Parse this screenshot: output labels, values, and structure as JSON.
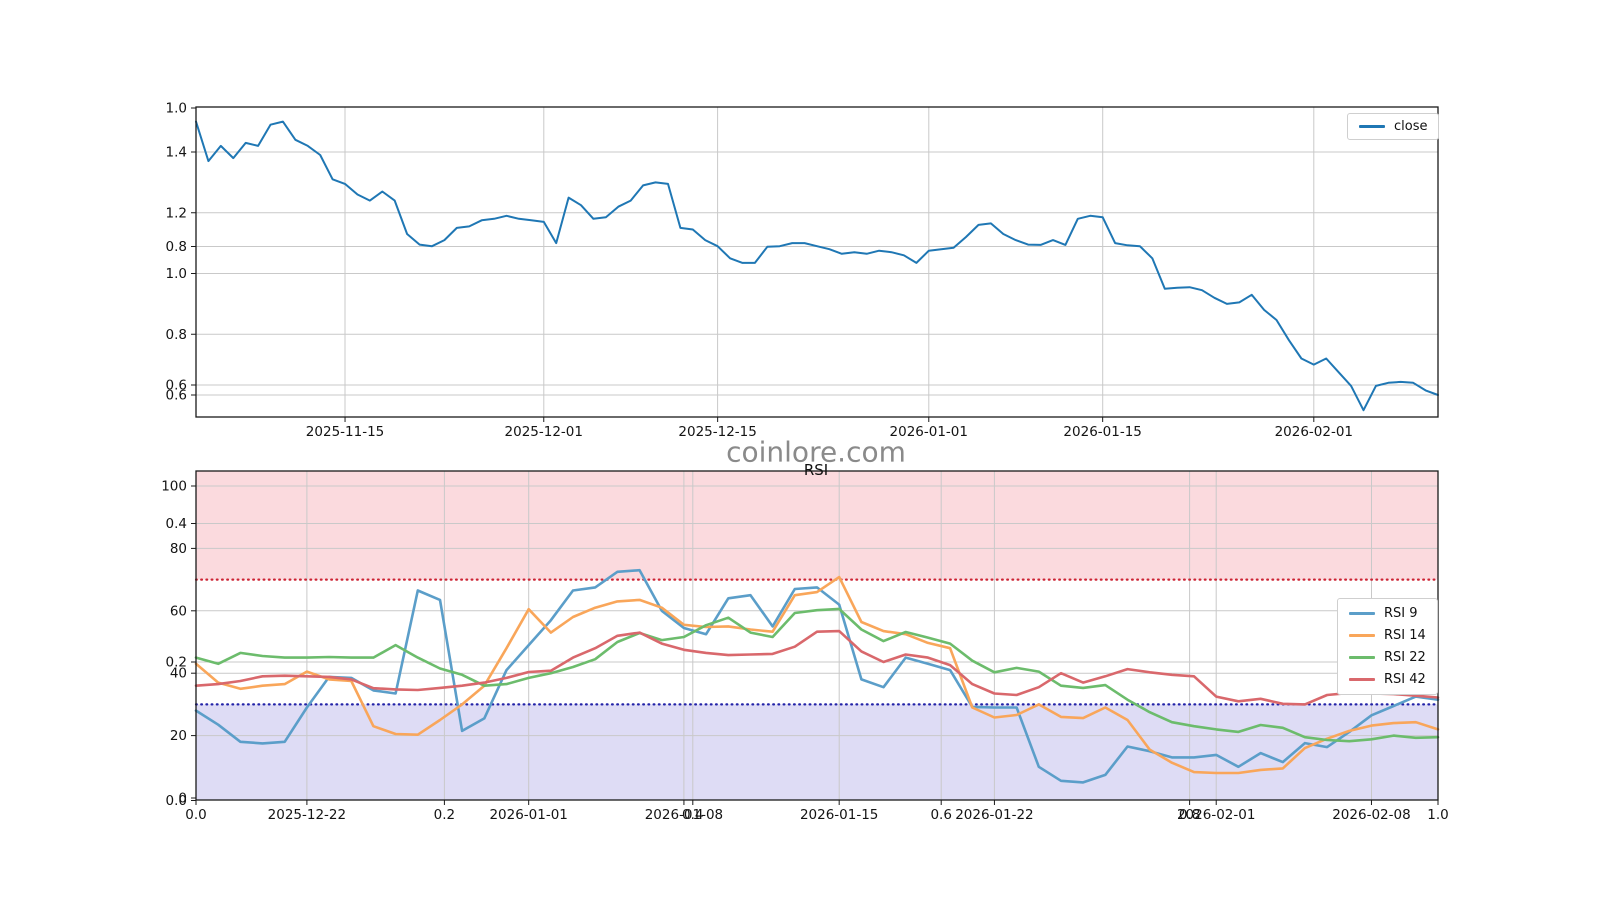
{
  "watermark": "coinlore.com",
  "fraction_axis_ticks": [
    {
      "label": "0.0",
      "value": 0.0
    },
    {
      "label": "0.2",
      "value": 0.2
    },
    {
      "label": "0.4",
      "value": 0.4
    },
    {
      "label": "0.6",
      "value": 0.6
    },
    {
      "label": "0.8",
      "value": 0.8
    },
    {
      "label": "1.0",
      "value": 1.0
    }
  ],
  "chart_data": [
    {
      "type": "line",
      "title": "",
      "legend_position": "upper right",
      "grid": true,
      "ylim": [
        0.53,
        1.52
      ],
      "x_tick_labels": [
        "2025-11-15",
        "2025-12-01",
        "2025-12-15",
        "2026-01-01",
        "2026-01-15",
        "2026-02-01"
      ],
      "y_ticks": [
        {
          "label": "1.4",
          "value": 1.4
        },
        {
          "label": "1.2",
          "value": 1.2
        },
        {
          "label": "1.0",
          "value": 1.0
        },
        {
          "label": "0.8",
          "value": 0.8
        },
        {
          "label": "0.6",
          "value": 0.6
        }
      ],
      "x": [
        "2025-11-03",
        "2025-11-04",
        "2025-11-05",
        "2025-11-06",
        "2025-11-07",
        "2025-11-08",
        "2025-11-09",
        "2025-11-10",
        "2025-11-11",
        "2025-11-12",
        "2025-11-13",
        "2025-11-14",
        "2025-11-15",
        "2025-11-16",
        "2025-11-17",
        "2025-11-18",
        "2025-11-19",
        "2025-11-20",
        "2025-11-21",
        "2025-11-22",
        "2025-11-23",
        "2025-11-24",
        "2025-11-25",
        "2025-11-26",
        "2025-11-27",
        "2025-11-28",
        "2025-11-29",
        "2025-11-30",
        "2025-12-01",
        "2025-12-02",
        "2025-12-03",
        "2025-12-04",
        "2025-12-05",
        "2025-12-06",
        "2025-12-07",
        "2025-12-08",
        "2025-12-09",
        "2025-12-10",
        "2025-12-11",
        "2025-12-12",
        "2025-12-13",
        "2025-12-14",
        "2025-12-15",
        "2025-12-16",
        "2025-12-17",
        "2025-12-18",
        "2025-12-19",
        "2025-12-20",
        "2025-12-21",
        "2025-12-22",
        "2025-12-23",
        "2025-12-24",
        "2025-12-25",
        "2025-12-26",
        "2025-12-27",
        "2025-12-28",
        "2025-12-29",
        "2025-12-30",
        "2025-12-31",
        "2026-01-01",
        "2026-01-02",
        "2026-01-03",
        "2026-01-04",
        "2026-01-05",
        "2026-01-06",
        "2026-01-07",
        "2026-01-08",
        "2026-01-09",
        "2026-01-10",
        "2026-01-11",
        "2026-01-12",
        "2026-01-13",
        "2026-01-14",
        "2026-01-15",
        "2026-01-16",
        "2026-01-17",
        "2026-01-18",
        "2026-01-19",
        "2026-01-20",
        "2026-01-21",
        "2026-01-22",
        "2026-01-23",
        "2026-01-24",
        "2026-01-25",
        "2026-01-26",
        "2026-01-27",
        "2026-01-28",
        "2026-01-29",
        "2026-01-30",
        "2026-01-31",
        "2026-02-01",
        "2026-02-02",
        "2026-02-03",
        "2026-02-04",
        "2026-02-05",
        "2026-02-06",
        "2026-02-07",
        "2026-02-08",
        "2026-02-09",
        "2026-02-10",
        "2026-02-11"
      ],
      "series": [
        {
          "name": "close",
          "color": "#1f77b4",
          "values": [
            1.5,
            1.37,
            1.42,
            1.38,
            1.43,
            1.42,
            1.49,
            1.5,
            1.44,
            1.42,
            1.39,
            1.31,
            1.295,
            1.26,
            1.24,
            1.27,
            1.24,
            1.13,
            1.095,
            1.09,
            1.11,
            1.15,
            1.155,
            1.175,
            1.18,
            1.19,
            1.18,
            1.175,
            1.17,
            1.1,
            1.25,
            1.225,
            1.18,
            1.185,
            1.22,
            1.24,
            1.29,
            1.3,
            1.295,
            1.15,
            1.145,
            1.11,
            1.09,
            1.05,
            1.035,
            1.035,
            1.088,
            1.09,
            1.1,
            1.1,
            1.09,
            1.08,
            1.065,
            1.07,
            1.065,
            1.075,
            1.07,
            1.06,
            1.035,
            1.075,
            1.08,
            1.085,
            1.12,
            1.16,
            1.165,
            1.13,
            1.11,
            1.095,
            1.094,
            1.11,
            1.094,
            1.18,
            1.19,
            1.185,
            1.1,
            1.093,
            1.09,
            1.05,
            0.95,
            0.953,
            0.955,
            0.945,
            0.92,
            0.9,
            0.905,
            0.93,
            0.88,
            0.847,
            0.78,
            0.72,
            0.7,
            0.72,
            0.675,
            0.63,
            0.55,
            0.63,
            0.64,
            0.643,
            0.64,
            0.615,
            0.6
          ]
        }
      ]
    },
    {
      "type": "line",
      "title": "RSI",
      "legend_position": "right",
      "grid": true,
      "ylim": [
        0,
        105
      ],
      "overbought_level": 70,
      "oversold_level": 30,
      "bands": [
        {
          "name": "overbought",
          "range": [
            70,
            105
          ],
          "color": "#fbdade"
        },
        {
          "name": "oversold",
          "range": [
            -2,
            30
          ],
          "color": "#dedcf5"
        }
      ],
      "threshold_lines": [
        {
          "name": "overbought-threshold",
          "value": 70,
          "color": "#cc2434",
          "style": "dotted"
        },
        {
          "name": "oversold-threshold",
          "value": 30,
          "color": "#2323a8",
          "style": "dotted"
        }
      ],
      "x_tick_labels": [
        "2025-12-22",
        "2026-01-01",
        "2026-01-08",
        "2026-01-15",
        "2026-01-22",
        "2026-02-01",
        "2026-02-08"
      ],
      "y_ticks": [
        {
          "label": "100",
          "value": 100
        },
        {
          "label": "80",
          "value": 80
        },
        {
          "label": "60",
          "value": 60
        },
        {
          "label": "40",
          "value": 40
        },
        {
          "label": "20",
          "value": 20
        },
        {
          "label": "0",
          "value": 0
        }
      ],
      "x": [
        "2025-12-17",
        "2025-12-18",
        "2025-12-19",
        "2025-12-20",
        "2025-12-21",
        "2025-12-22",
        "2025-12-23",
        "2025-12-24",
        "2025-12-25",
        "2025-12-26",
        "2025-12-27",
        "2025-12-28",
        "2025-12-29",
        "2025-12-30",
        "2025-12-31",
        "2026-01-01",
        "2026-01-02",
        "2026-01-03",
        "2026-01-04",
        "2026-01-05",
        "2026-01-06",
        "2026-01-07",
        "2026-01-08",
        "2026-01-09",
        "2026-01-10",
        "2026-01-11",
        "2026-01-12",
        "2026-01-13",
        "2026-01-14",
        "2026-01-15",
        "2026-01-16",
        "2026-01-17",
        "2026-01-18",
        "2026-01-19",
        "2026-01-20",
        "2026-01-21",
        "2026-01-22",
        "2026-01-23",
        "2026-01-24",
        "2026-01-25",
        "2026-01-26",
        "2026-01-27",
        "2026-01-28",
        "2026-01-29",
        "2026-01-30",
        "2026-01-31",
        "2026-02-01",
        "2026-02-02",
        "2026-02-03",
        "2026-02-04",
        "2026-02-05",
        "2026-02-06",
        "2026-02-07",
        "2026-02-08",
        "2026-02-09",
        "2026-02-10",
        "2026-02-11"
      ],
      "series": [
        {
          "name": "RSI 9",
          "color": "#5b9ec9",
          "values": [
            28,
            23.5,
            18,
            17.5,
            18,
            29,
            38.8,
            38.5,
            34.5,
            33.5,
            66.5,
            63.5,
            21.5,
            25.5,
            41,
            49,
            57,
            66.5,
            67.5,
            72.5,
            73,
            60,
            54.5,
            52.5,
            64,
            65,
            55,
            67,
            67.5,
            62,
            38,
            35.5,
            45,
            43,
            41,
            29.2,
            29,
            29,
            10,
            5.5,
            5,
            7.4,
            16.5,
            15,
            13,
            13,
            13.8,
            10,
            14.4,
            11.5,
            17.6,
            16.3,
            21.2,
            26.5,
            29.5,
            32.5,
            31.5
          ]
        },
        {
          "name": "RSI 14",
          "color": "#f9a65a",
          "values": [
            43,
            37,
            35,
            36,
            36.5,
            40.5,
            38,
            37.5,
            23,
            20.5,
            20.3,
            25,
            30,
            36,
            48,
            60.5,
            53,
            58,
            61,
            63,
            63.5,
            61,
            55.5,
            54.8,
            55,
            54,
            53.3,
            65,
            66,
            70.8,
            56.4,
            53.5,
            52.5,
            49.7,
            48,
            29,
            25.8,
            26.6,
            30,
            26,
            25.6,
            29,
            25,
            15.5,
            11.3,
            8.3,
            8,
            8,
            9,
            9.5,
            16,
            19,
            21.5,
            23.2,
            24,
            24.3,
            22
          ]
        },
        {
          "name": "RSI 22",
          "color": "#6cbc6c",
          "values": [
            45,
            43,
            46.5,
            45.5,
            45,
            45,
            45.2,
            45,
            45,
            49,
            45,
            41.5,
            39.5,
            36,
            36.5,
            38.5,
            40,
            42,
            44.5,
            50,
            52.9,
            50.6,
            51.6,
            55.4,
            57.8,
            53,
            51.6,
            59.3,
            60.2,
            60.6,
            54,
            50.3,
            53.2,
            51.4,
            49.5,
            44,
            40.3,
            41.7,
            40.5,
            36,
            35.3,
            36.2,
            31.5,
            27.5,
            24.3,
            23,
            22,
            21.2,
            23.4,
            22.5,
            19.5,
            18.6,
            18.2,
            18.8,
            20,
            19.3,
            19.5
          ]
        },
        {
          "name": "RSI 42",
          "color": "#d9686c",
          "values": [
            36,
            36.5,
            37.5,
            39,
            39.2,
            39,
            38.8,
            38,
            35.2,
            34.8,
            34.6,
            35.3,
            36,
            37,
            38.5,
            40.4,
            40.8,
            45,
            48,
            52,
            53,
            49.5,
            47.5,
            46.5,
            45.8,
            46,
            46.2,
            48.5,
            53.3,
            53.5,
            47,
            43.6,
            46,
            45,
            42.6,
            36.5,
            33.5,
            33,
            35.5,
            40,
            37,
            39,
            41.3,
            40.3,
            39.5,
            39,
            32.5,
            31,
            31.8,
            30.2,
            30,
            33,
            33.7,
            33.5,
            33.3,
            32.8,
            32.2
          ]
        }
      ]
    }
  ]
}
